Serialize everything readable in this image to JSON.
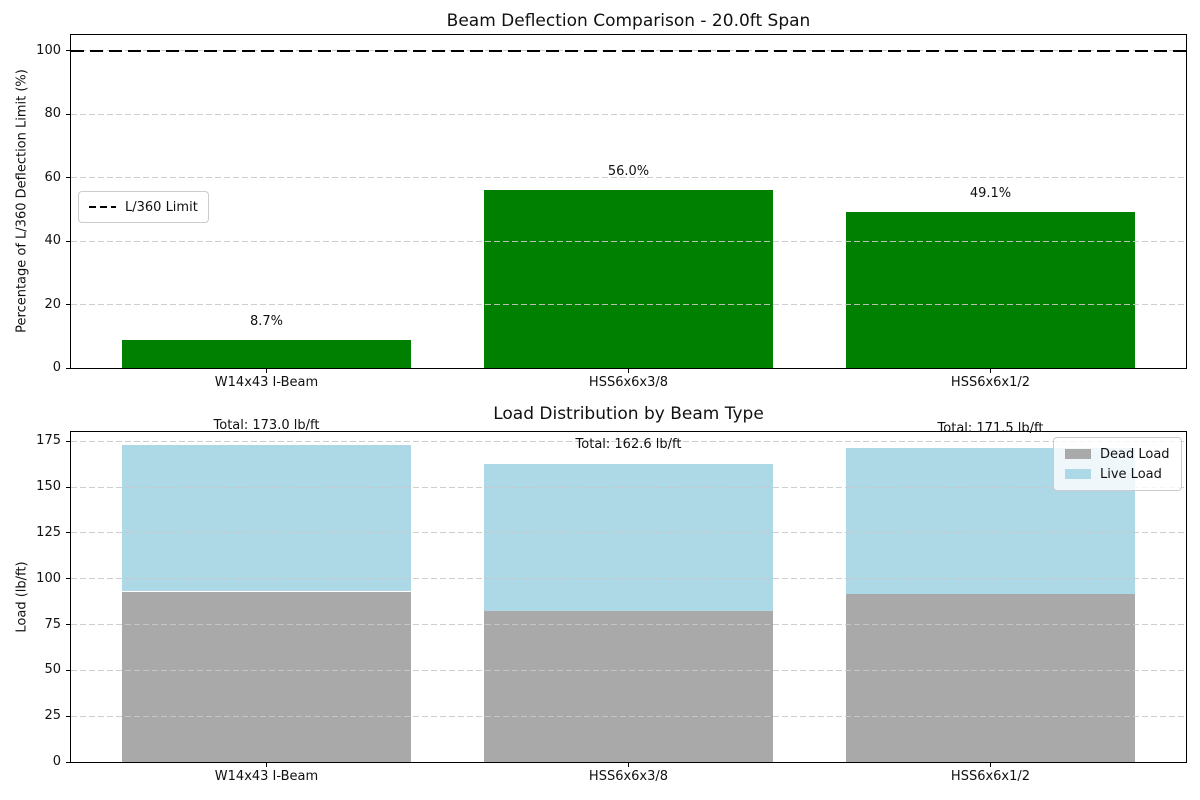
{
  "chart_data": [
    {
      "type": "bar",
      "title": "Beam Deflection Comparison - 20.0ft Span",
      "ylabel": "Percentage of L/360 Deflection Limit (%)",
      "xlabel": "",
      "categories": [
        "W14x43 I-Beam",
        "HSS6x6x3/8",
        "HSS6x6x1/2"
      ],
      "values": [
        8.7,
        56.0,
        49.1
      ],
      "value_labels": [
        "8.7%",
        "56.0%",
        "49.1%"
      ],
      "bar_color": "#008000",
      "ylim": [
        0,
        105
      ],
      "yticks": [
        0,
        20,
        40,
        60,
        80,
        100
      ],
      "grid": true,
      "legend_position": "center-left",
      "limit_line": {
        "value": 100,
        "label": "L/360 Limit",
        "color": "#000000",
        "style": "dashed"
      }
    },
    {
      "type": "stacked-bar",
      "title": "Load Distribution by Beam Type",
      "ylabel": "Load (lb/ft)",
      "xlabel": "",
      "categories": [
        "W14x43 I-Beam",
        "HSS6x6x3/8",
        "HSS6x6x1/2"
      ],
      "series": [
        {
          "name": "Dead Load",
          "color": "#a9a9a9",
          "values": [
            93.0,
            82.6,
            91.5
          ]
        },
        {
          "name": "Live Load",
          "color": "#add8e6",
          "values": [
            80.0,
            80.0,
            80.0
          ]
        }
      ],
      "totals": [
        173.0,
        162.6,
        171.5
      ],
      "total_labels": [
        "Total: 173.0 lb/ft",
        "Total: 162.6 lb/ft",
        "Total: 171.5 lb/ft"
      ],
      "ylim": [
        0,
        180
      ],
      "yticks": [
        0,
        25,
        50,
        75,
        100,
        125,
        150,
        175
      ],
      "grid": true,
      "legend_position": "upper-right"
    }
  ],
  "colors": {
    "axis": "#000000",
    "grid": "#c9c9c9",
    "background": "#ffffff"
  }
}
